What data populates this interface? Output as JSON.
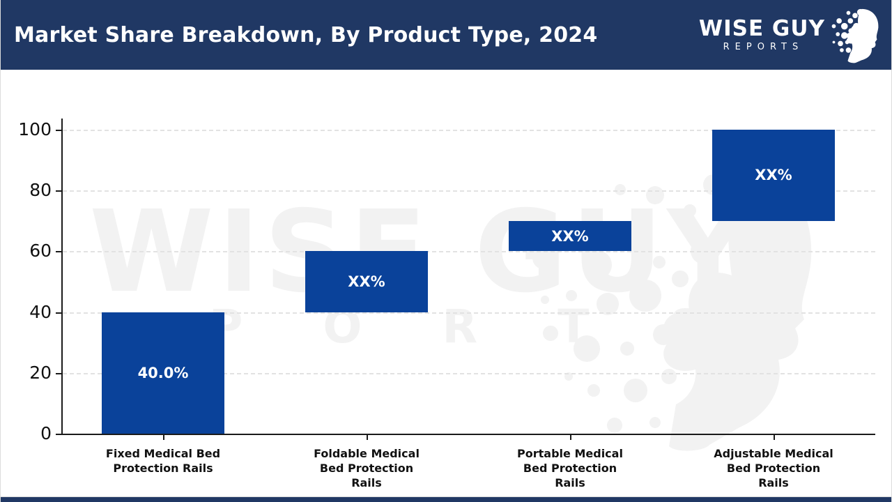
{
  "header": {
    "title": "Market Share Breakdown, By Product Type, 2024",
    "logo": {
      "line1": "WISE GUY",
      "line2": "REPORTS"
    },
    "bg_color": "#203864"
  },
  "watermark": {
    "line1": "WISE GUY",
    "line2": "P O R T S"
  },
  "chart_data": {
    "type": "bar",
    "variant": "floating-stacked-waterfall",
    "title": "Market Share Breakdown, By Product Type, 2024",
    "categories": [
      "Fixed Medical Bed\nProtection Rails",
      "Foldable Medical\nBed Protection\nRails",
      "Portable Medical\nBed Protection\nRails",
      "Adjustable Medical\nBed Protection\nRails"
    ],
    "segments": [
      {
        "category": "Fixed Medical Bed Protection Rails",
        "start": 0,
        "end": 40,
        "value": 40,
        "value_label": "40.0%"
      },
      {
        "category": "Foldable Medical Bed Protection Rails",
        "start": 40,
        "end": 60,
        "value": 20,
        "value_label": "XX%"
      },
      {
        "category": "Portable Medical Bed Protection Rails",
        "start": 60,
        "end": 70,
        "value": 10,
        "value_label": "XX%"
      },
      {
        "category": "Adjustable Medical Bed Protection Rails",
        "start": 70,
        "end": 100,
        "value": 30,
        "value_label": "XX%"
      }
    ],
    "yticks": [
      0,
      20,
      40,
      60,
      80,
      100
    ],
    "ylim": [
      0,
      103.7
    ],
    "grid": "horizontal-dashed",
    "legend": "none",
    "bar_color": "#0a429a",
    "value_label_color": "#ffffff",
    "xlabel": "",
    "ylabel": ""
  }
}
